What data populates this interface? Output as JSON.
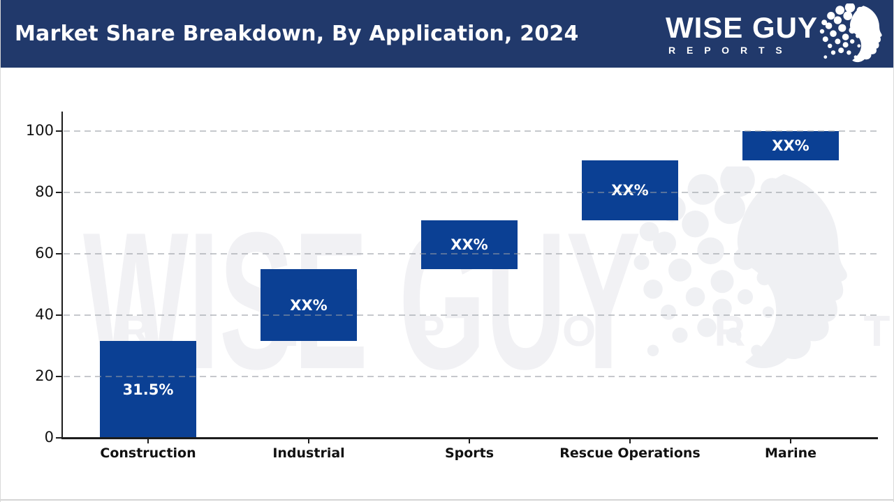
{
  "header": {
    "title": "Market Share Breakdown, By Application, 2024"
  },
  "logo": {
    "name_line": "WISE GUY",
    "reports_line": "R E P O R T S"
  },
  "watermark": {
    "name_line": "WISE GUY",
    "reports_line": "R E P O R T S"
  },
  "chart_data": {
    "type": "bar",
    "variant": "waterfall",
    "title": "Market Share Breakdown, By Application, 2024",
    "categories": [
      "Construction",
      "Industrial",
      "Sports",
      "Rescue Operations",
      "Marine"
    ],
    "segments": [
      {
        "category": "Construction",
        "start": 0,
        "end": 31.5,
        "label": "31.5%"
      },
      {
        "category": "Industrial",
        "start": 31.5,
        "end": 55,
        "label": "XX%"
      },
      {
        "category": "Sports",
        "start": 55,
        "end": 71,
        "label": "XX%"
      },
      {
        "category": "Rescue Operations",
        "start": 71,
        "end": 90.5,
        "label": "XX%"
      },
      {
        "category": "Marine",
        "start": 90.5,
        "end": 100,
        "label": "XX%"
      }
    ],
    "y_ticks": [
      0,
      20,
      40,
      60,
      80,
      100
    ],
    "ylim": [
      0,
      105
    ],
    "xlabel": "",
    "ylabel": "",
    "grid": "horizontal-dashed",
    "legend": "none",
    "colors": {
      "bar": "#0b4094",
      "header_bg": "#21396b",
      "grid": "#d9d9d9",
      "axis": "#1c1c1c",
      "bar_label_text": "#ffffff"
    }
  }
}
